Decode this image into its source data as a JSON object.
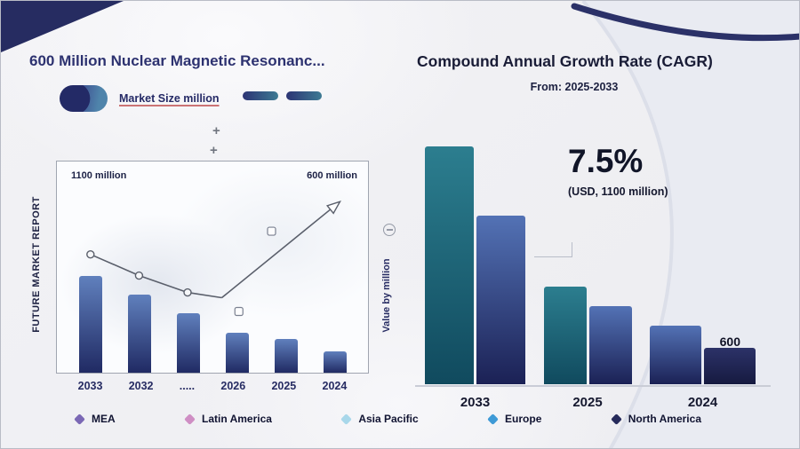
{
  "left_panel": {
    "title": "600 Million Nuclear Magnetic Resonanc...",
    "legend_label": "Market Size million",
    "axis_left": "FUTURE MARKET REPORT",
    "axis_right": "Value by million",
    "annotation_left": "1100 million",
    "annotation_right": "600 million",
    "plus_marks": [
      "+",
      "+"
    ]
  },
  "right_panel": {
    "title": "Compound Annual Growth Rate (CAGR)",
    "subtitle": "From: 2025-2033",
    "cagr_value": "7.5%",
    "cagr_note": "(USD, 1100 million)"
  },
  "region_legend": [
    {
      "label": "MEA",
      "color": "#7b68b5"
    },
    {
      "label": "Latin America",
      "color": "#cf8ec4"
    },
    {
      "label": "Asia Pacific",
      "color": "#a8d7ea"
    },
    {
      "label": "Europe",
      "color": "#3e9ad6"
    },
    {
      "label": "North America",
      "color": "#262a5b"
    }
  ],
  "colors": {
    "navy": "#262c61",
    "teal": "#2c7e8f",
    "bar_blue_top": "#6080bd",
    "bar_blue_bottom": "#202a63"
  },
  "chart_data": [
    {
      "id": "market-size-by-year",
      "type": "bar",
      "title": "Market Size million",
      "categories": [
        "2033",
        "2032",
        ".....",
        "2026",
        "2025",
        "2024"
      ],
      "values_pct": [
        46,
        37,
        28,
        19,
        16,
        10
      ],
      "annotations": [
        {
          "text": "1100 million",
          "position": "top-left"
        },
        {
          "text": "600 million",
          "position": "top-right"
        }
      ],
      "ylabel": "Value by million",
      "trend_line": {
        "points_pct": [
          [
            10.8,
            44
          ],
          [
            26.4,
            54
          ],
          [
            42,
            62
          ],
          [
            53,
            64.5
          ]
        ],
        "arrow_end_pct": [
          91,
          19
        ],
        "marker_squares_pct": [
          [
            58.5,
            71
          ],
          [
            69,
            33
          ]
        ]
      }
    },
    {
      "id": "cagr-by-year",
      "type": "bar",
      "title": "Compound Annual Growth Rate (CAGR)",
      "cagr_percent": 7.5,
      "period": "2025-2033",
      "groups": [
        {
          "label": "2033",
          "bars": [
            {
              "color": "teal",
              "height_pct": 97
            },
            {
              "color": "blue",
              "height_pct": 69
            }
          ]
        },
        {
          "label": "2025",
          "bars": [
            {
              "color": "teal",
              "height_pct": 40
            },
            {
              "color": "blue",
              "height_pct": 32
            }
          ]
        },
        {
          "label": "2024",
          "bars": [
            {
              "color": "blue",
              "height_pct": 24,
              "value_label": "600"
            },
            {
              "color": "navy",
              "height_pct": 15
            }
          ]
        }
      ]
    }
  ]
}
